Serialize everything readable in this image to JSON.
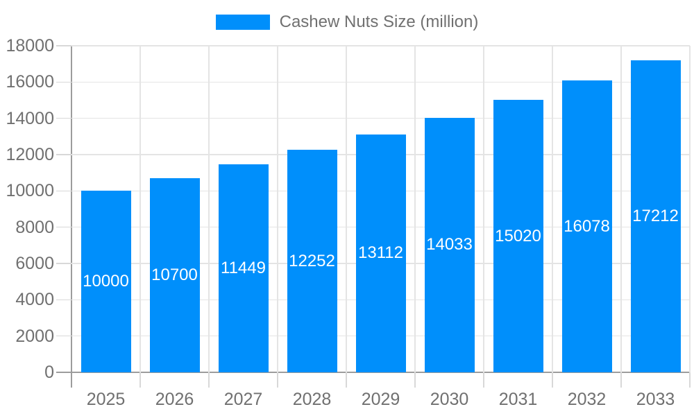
{
  "chart_data": {
    "type": "bar",
    "title": "",
    "legend": {
      "label": "Cashew Nuts Size (million)",
      "position": "top"
    },
    "categories": [
      "2025",
      "2026",
      "2027",
      "2028",
      "2029",
      "2030",
      "2031",
      "2032",
      "2033"
    ],
    "series": [
      {
        "name": "Cashew Nuts Size (million)",
        "values": [
          10000,
          10700,
          11449,
          12252,
          13112,
          14033,
          15020,
          16078,
          17212
        ]
      }
    ],
    "bar_value_labels": [
      "10000",
      "10700",
      "11449",
      "12252",
      "13112",
      "14033",
      "15020",
      "16078",
      "17212"
    ],
    "ylim": [
      0,
      18000
    ],
    "ytick_step": 2000,
    "ytick_labels": [
      "0",
      "2000",
      "4000",
      "6000",
      "8000",
      "10000",
      "12000",
      "14000",
      "16000",
      "18000"
    ],
    "grid": true,
    "bar_label_position": "inside-center"
  },
  "colors": {
    "bar": "#008FFB",
    "grid": "#e4e4e4",
    "axis": "#9c9c9c",
    "tick": "#d8d8d8",
    "text": "#707070",
    "bar_label": "#ffffff"
  }
}
